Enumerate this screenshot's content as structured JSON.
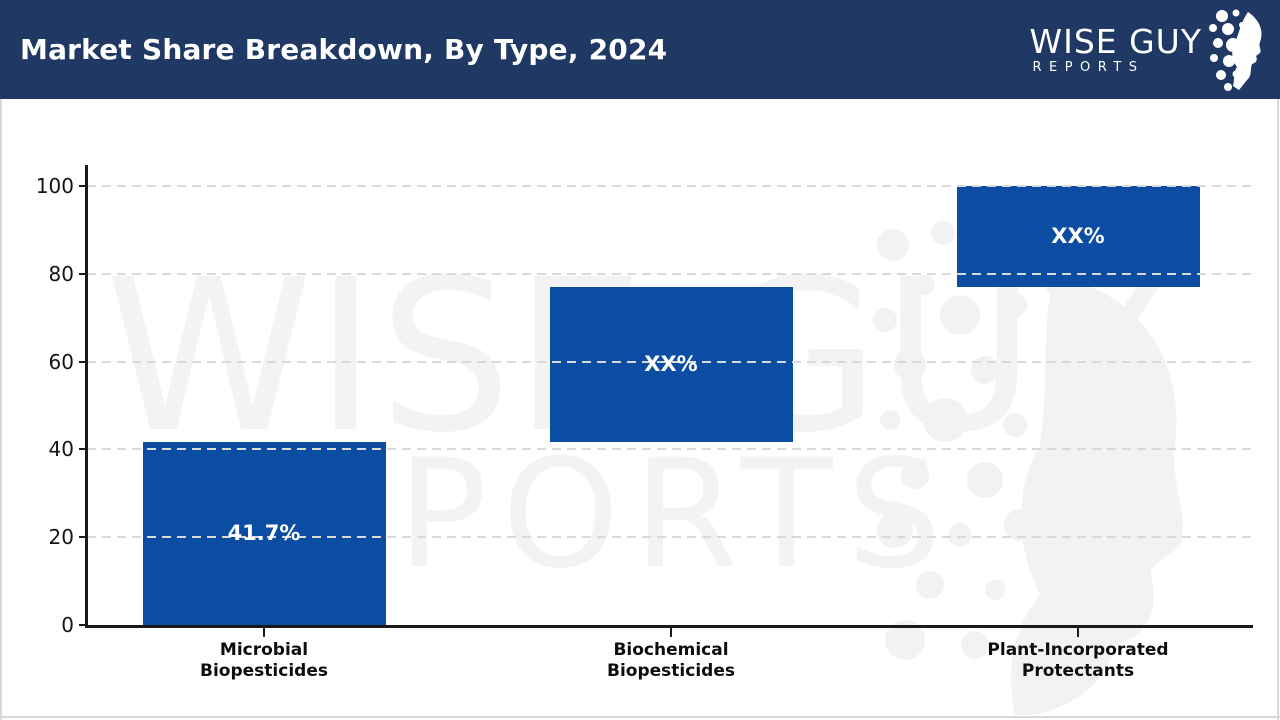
{
  "header": {
    "title": "Market Share Breakdown, By Type, 2024",
    "logo": {
      "wordmark": "WISE GUY",
      "subtitle": "REPORTS"
    }
  },
  "watermark": {
    "wordmark": "WISE GUY",
    "subtitle": "REPORTS"
  },
  "chart_data": {
    "type": "bar",
    "subtype": "stacked-waterfall",
    "title": "Market Share Breakdown, By Type, 2024",
    "categories": [
      [
        "Microbial",
        "Biopesticides"
      ],
      [
        "Biochemical",
        "Biopesticides"
      ],
      [
        "Plant-Incorporated",
        "Protectants"
      ]
    ],
    "series": [
      {
        "name": "Market share (%)",
        "segments": [
          {
            "category": "Microbial Biopesticides",
            "start": 0,
            "end": 41.7,
            "label": "41.7%"
          },
          {
            "category": "Biochemical Biopesticides",
            "start": 41.7,
            "end": 77.0,
            "label": "XX%"
          },
          {
            "category": "Plant-Incorporated Protectants",
            "start": 77.0,
            "end": 100.0,
            "label": "XX%"
          }
        ]
      }
    ],
    "xlabel": "",
    "ylabel": "",
    "ylim": [
      0,
      105
    ],
    "yticks": [
      0,
      20,
      40,
      60,
      80,
      100
    ],
    "grid": true,
    "grid_style": "dashed",
    "legend": false
  },
  "colors": {
    "header_bg": "#1F3864",
    "bar": "#0B4DA2",
    "bar_label": "#FFFFFF",
    "grid": "#D9D9D9",
    "axis": "#1A1A1A",
    "tick_label": "#141414",
    "watermark": "#F3F3F3",
    "frame_border": "#D8D8D8"
  }
}
